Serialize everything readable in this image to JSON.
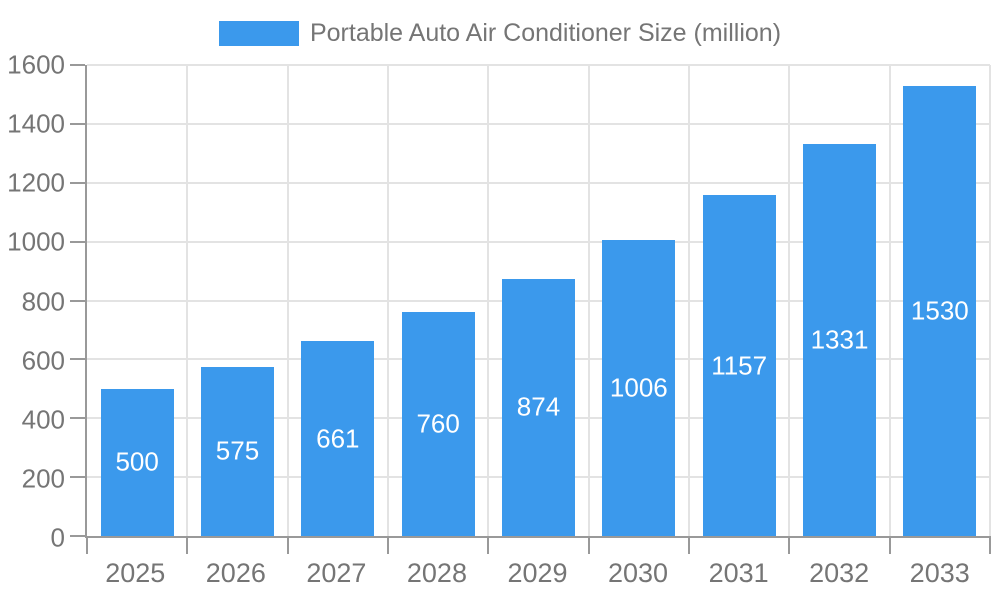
{
  "chart_data": {
    "type": "bar",
    "title": "Portable Auto Air Conditioner Size (million)",
    "categories": [
      "2025",
      "2026",
      "2027",
      "2028",
      "2029",
      "2030",
      "2031",
      "2032",
      "2033"
    ],
    "values": [
      500,
      575,
      661,
      760,
      874,
      1006,
      1157,
      1331,
      1530
    ],
    "xlabel": "",
    "ylabel": "",
    "ylim": [
      0,
      1600
    ],
    "yticks": [
      0,
      200,
      400,
      600,
      800,
      1000,
      1200,
      1400,
      1600
    ],
    "grid": true,
    "legend_position": "top-center",
    "bar_labels_inside": true,
    "colors": {
      "bar": "#3B99EC",
      "axis": "#999999",
      "grid": "#E3E3E3",
      "text": "#757575",
      "bar_label": "#FFFFFF",
      "background": "#FFFFFF"
    }
  }
}
